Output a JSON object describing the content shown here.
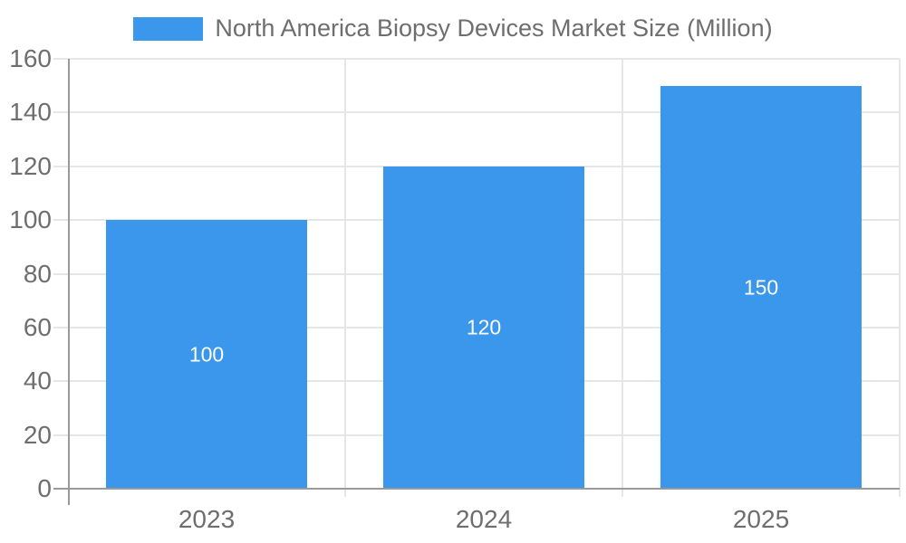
{
  "legend": {
    "series_label": "North America Biopsy Devices Market Size (Million)"
  },
  "chart_data": {
    "type": "bar",
    "title": "North America Biopsy Devices Market Size (Million)",
    "categories": [
      "2023",
      "2024",
      "2025"
    ],
    "values": [
      100,
      120,
      150
    ],
    "series": [
      {
        "name": "North America Biopsy Devices Market Size (Million)",
        "values": [
          100,
          120,
          150
        ]
      }
    ],
    "value_labels": [
      "100",
      "120",
      "150"
    ],
    "xlabel": "",
    "ylabel": "",
    "ylim": [
      0,
      160
    ],
    "yticks": [
      0,
      20,
      40,
      60,
      80,
      100,
      120,
      140,
      160
    ],
    "legend_position": "top",
    "grid": true,
    "colors": {
      "bar": "#3a97ec",
      "axis_text": "#6e6e6e",
      "legend_text": "#6e6e6e",
      "grid_line": "#e6e6e6",
      "axis_line": "#9a9a9a",
      "value_label": "#ffffff",
      "background": "#ffffff"
    }
  }
}
